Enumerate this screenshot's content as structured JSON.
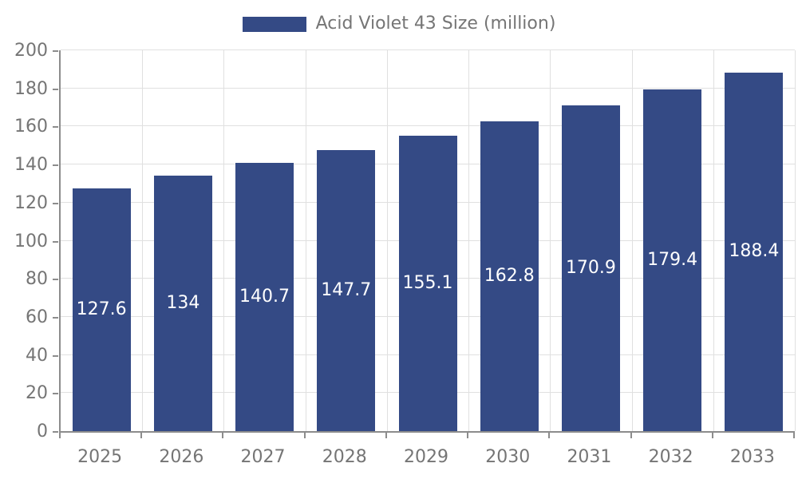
{
  "legend": {
    "label": "Acid Violet 43 Size (million)",
    "swatch_color": "#344a85"
  },
  "chart_data": {
    "type": "bar",
    "title": "Acid Violet 43 Size (million)",
    "categories": [
      "2025",
      "2026",
      "2027",
      "2028",
      "2029",
      "2030",
      "2031",
      "2032",
      "2033"
    ],
    "series": [
      {
        "name": "Acid Violet 43 Size (million)",
        "values": [
          127.6,
          134,
          140.7,
          147.7,
          155.1,
          162.8,
          170.9,
          179.4,
          188.4
        ],
        "color": "#344a85"
      }
    ],
    "bar_labels": [
      "127.6",
      "134",
      "140.7",
      "147.7",
      "155.1",
      "162.8",
      "170.9",
      "179.4",
      "188.4"
    ],
    "bar_label_color": "#ffffff",
    "xlabel": "",
    "ylabel": "",
    "ylim": [
      0,
      200
    ],
    "y_ticks": [
      0,
      20,
      40,
      60,
      80,
      100,
      120,
      140,
      160,
      180,
      200
    ],
    "grid": "on",
    "legend_position": "top",
    "colors": {
      "grid_line": "#e0e0e0",
      "axis_line": "#8c8c8c",
      "tick_text": "#757575"
    }
  }
}
